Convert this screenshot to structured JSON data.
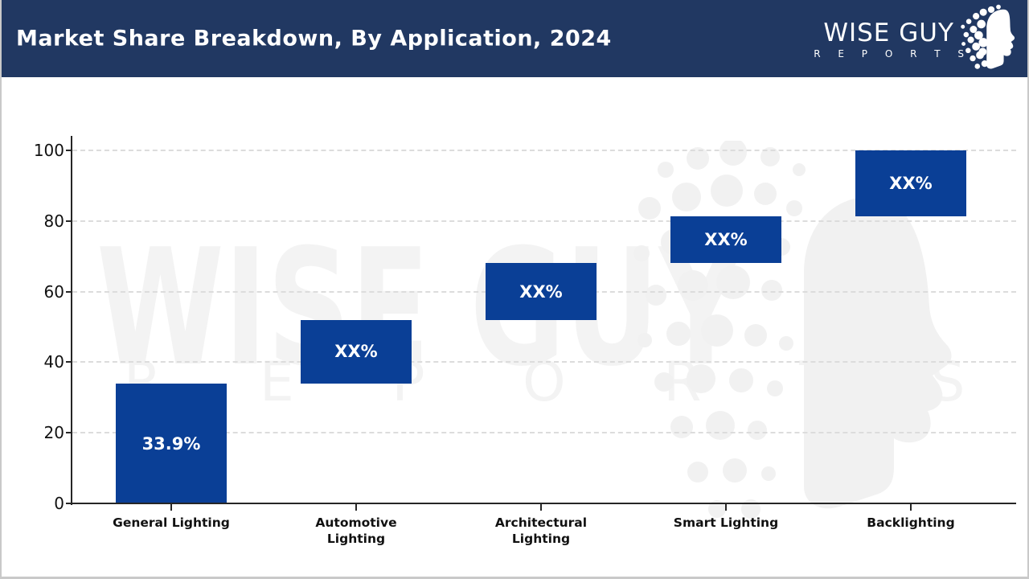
{
  "header": {
    "title": "Market Share Breakdown, By Application, 2024",
    "logo": {
      "line1": "WISE GUY",
      "line2": "REPORTS"
    }
  },
  "watermark": {
    "line1": "WISE GUY",
    "line2": "REPORTS"
  },
  "chart_data": {
    "type": "bar",
    "subtype": "waterfall",
    "title": "Market Share Breakdown, By Application, 2024",
    "categories": [
      "General Lighting",
      "Automotive Lighting",
      "Architectural Lighting",
      "Smart Lighting",
      "Backlighting"
    ],
    "categories_display": [
      "General Lighting",
      "Automotive\nLighting",
      "Architectural\nLighting",
      "Smart Lighting",
      "Backlighting"
    ],
    "segments": [
      {
        "category": "General Lighting",
        "start": 0,
        "end": 33.9,
        "label": "33.9%"
      },
      {
        "category": "Automotive Lighting",
        "start": 33.9,
        "end": 52.0,
        "label": "XX%"
      },
      {
        "category": "Architectural Lighting",
        "start": 52.0,
        "end": 68.0,
        "label": "XX%"
      },
      {
        "category": "Smart Lighting",
        "start": 68.0,
        "end": 81.4,
        "label": "XX%"
      },
      {
        "category": "Backlighting",
        "start": 81.4,
        "end": 100,
        "label": "XX%"
      }
    ],
    "yticks": [
      0,
      20,
      40,
      60,
      80,
      100
    ],
    "ylim": [
      0,
      104
    ],
    "xlabel": "",
    "ylabel": "",
    "grid": "horizontal-dashed",
    "legend": "none",
    "colors": {
      "bar": "#0A3F96",
      "bar_label": "#ffffff",
      "header_bg": "#213862",
      "axis": "#262626",
      "gridline": "#dcdcdc",
      "watermark": "#f3f3f3"
    }
  }
}
